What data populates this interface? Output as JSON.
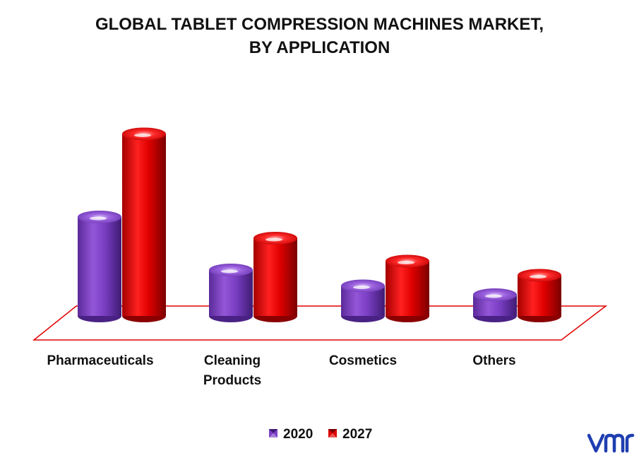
{
  "chart_data": {
    "type": "bar",
    "title_line1": "GLOBAL TABLET COMPRESSION MACHINES MARKET,",
    "title_line2": "BY APPLICATION",
    "categories": [
      [
        "Pharmaceuticals"
      ],
      [
        "Cleaning",
        "Products"
      ],
      [
        "Cosmetics"
      ],
      [
        "Others"
      ]
    ],
    "series": [
      {
        "name": "2020",
        "values": [
          5.6,
          2.6,
          1.7,
          1.2
        ],
        "color": "#7b3fc4"
      },
      {
        "name": "2027",
        "values": [
          10.3,
          4.4,
          3.1,
          2.3
        ],
        "color": "#e00000"
      }
    ],
    "ylim": [
      0,
      11
    ],
    "grid": false,
    "legend_position": "bottom-center",
    "style": "3d-cylinder"
  },
  "logo": {
    "name": "vmr-logo",
    "color": "#1f3fb0"
  }
}
